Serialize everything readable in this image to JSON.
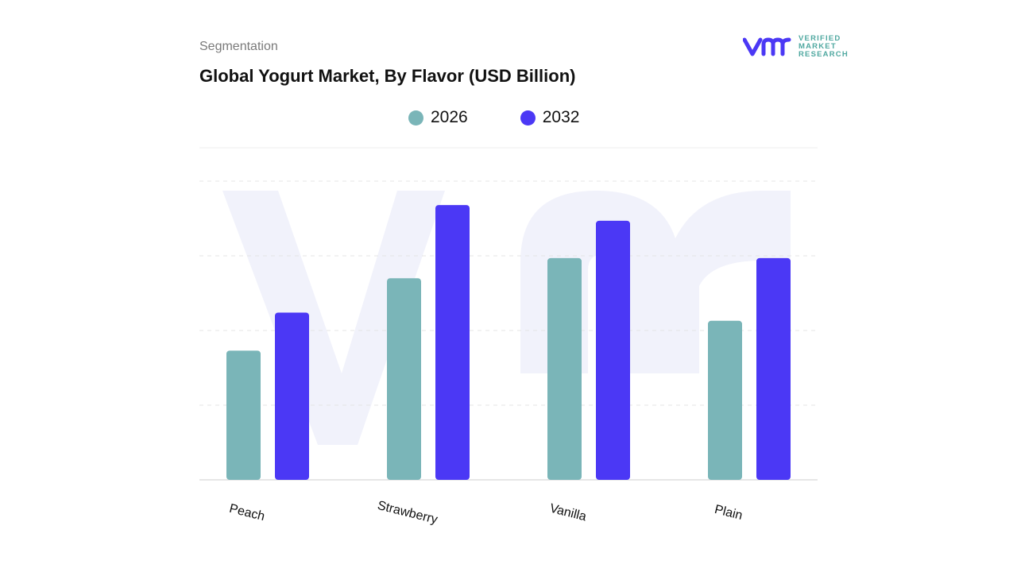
{
  "header": {
    "section": "Segmentation",
    "logo_text": [
      "VERIFIED",
      "MARKET",
      "RESEARCH"
    ]
  },
  "chart_data": {
    "type": "bar",
    "title": "Global Yogurt Market, By Flavor (USD Billion)",
    "categories": [
      "Peach",
      "Strawberry",
      "Vanilla",
      "Plain"
    ],
    "series": [
      {
        "name": "2026",
        "color": "#7ab5b8",
        "values": [
          1.73,
          2.7,
          2.97,
          2.13
        ]
      },
      {
        "name": "2032",
        "color": "#4b38f5",
        "values": [
          2.24,
          3.68,
          3.47,
          2.97
        ]
      }
    ],
    "ylim": [
      0,
      4
    ],
    "grid": true,
    "legend": "top-center",
    "xlabel": "",
    "ylabel": ""
  }
}
